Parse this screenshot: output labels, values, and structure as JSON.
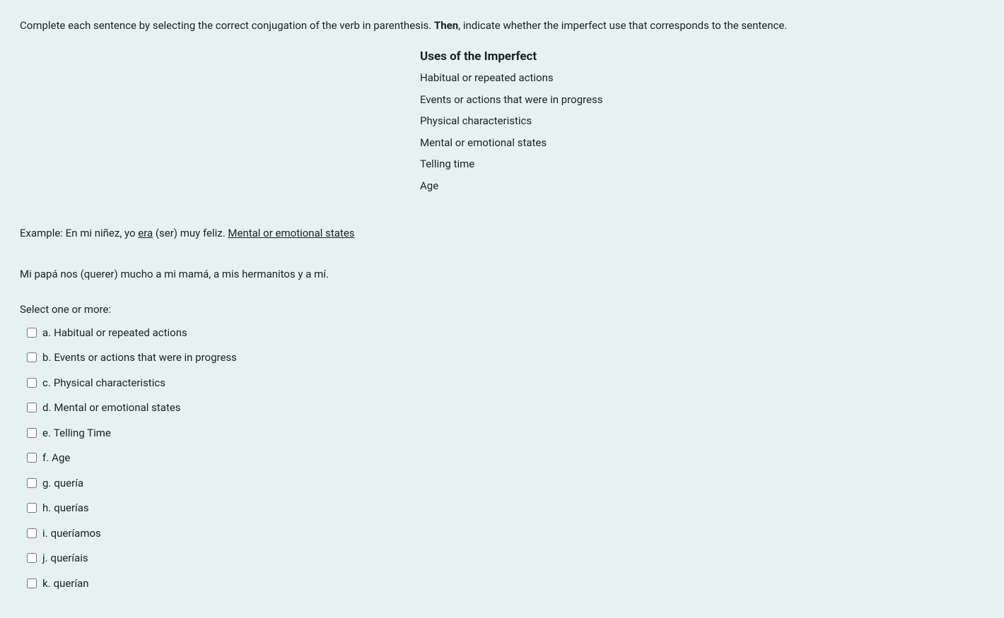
{
  "instruction": {
    "part1": "Complete each sentence by selecting the correct conjugation of the verb in parenthesis. ",
    "bold": "Then",
    "part2": ", indicate whether the imperfect use that corresponds to the sentence."
  },
  "uses": {
    "title": "Uses of the Imperfect",
    "items": [
      "Habitual or repeated actions",
      "Events or actions that were in progress",
      "Physical characteristics",
      "Mental or emotional states",
      "Telling time",
      "Age"
    ]
  },
  "example": {
    "prefix": "Example: En mi niñez, yo ",
    "verb": "era",
    "mid": " (ser) muy feliz. ",
    "category": "Mental or emotional states"
  },
  "question": "Mi papá nos (querer) mucho a mi mamá, a mis hermanitos y a mí.",
  "select_prompt": "Select one or more:",
  "options": [
    {
      "letter": "a.",
      "text": "Habitual or repeated actions"
    },
    {
      "letter": "b.",
      "text": "Events or actions that were in progress"
    },
    {
      "letter": "c.",
      "text": "Physical characteristics"
    },
    {
      "letter": "d.",
      "text": "Mental or emotional states"
    },
    {
      "letter": "e.",
      "text": "Telling Time"
    },
    {
      "letter": "f.",
      "text": "Age"
    },
    {
      "letter": "g.",
      "text": "quería"
    },
    {
      "letter": "h.",
      "text": "querías"
    },
    {
      "letter": "i.",
      "text": "queríamos"
    },
    {
      "letter": "j.",
      "text": "queríais"
    },
    {
      "letter": "k.",
      "text": "querían"
    }
  ],
  "colors": {
    "background": "#e6f2f2",
    "text": "#1d2125"
  }
}
